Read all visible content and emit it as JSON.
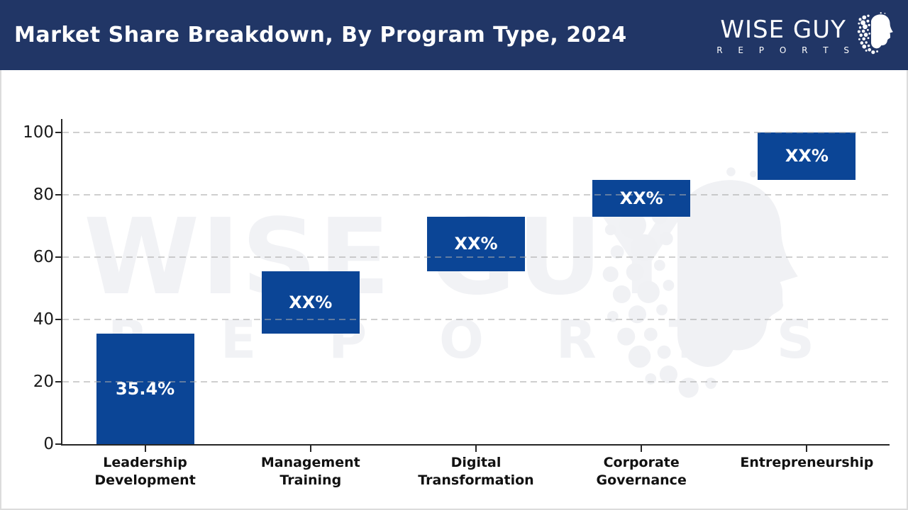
{
  "header": {
    "title": "Market Share Breakdown, By Program Type, 2024",
    "logo": {
      "name_top": "WISE GUY",
      "name_bottom": "R E P O R T S"
    },
    "colors": {
      "background": "#213666",
      "text": "#ffffff"
    }
  },
  "watermark": {
    "line1": "WISE GUY",
    "line2": "R E P O R T S"
  },
  "chart_data": {
    "type": "bar",
    "variant": "waterfall",
    "title": "Market Share Breakdown, By Program Type, 2024",
    "categories": [
      "Leadership Development",
      "Management Training",
      "Digital Transformation",
      "Corporate Governance",
      "Entrepreneurship"
    ],
    "category_label_lines": [
      [
        "Leadership",
        "Development"
      ],
      [
        "Management",
        "Training"
      ],
      [
        "Digital",
        "Transformation"
      ],
      [
        "Corporate",
        "Governance"
      ],
      [
        "Entrepreneurship"
      ]
    ],
    "segments": [
      {
        "category": "Leadership Development",
        "from": 0,
        "to": 35.4,
        "height": 35.4,
        "label": "35.4%"
      },
      {
        "category": "Management Training",
        "from": 35.4,
        "to": 55.5,
        "height": 20.1,
        "label": "XX%"
      },
      {
        "category": "Digital Transformation",
        "from": 55.5,
        "to": 73.0,
        "height": 17.5,
        "label": "XX%"
      },
      {
        "category": "Corporate Governance",
        "from": 73.0,
        "to": 84.8,
        "height": 11.8,
        "label": "XX%"
      },
      {
        "category": "Entrepreneurship",
        "from": 84.8,
        "to": 100.0,
        "height": 15.2,
        "label": "XX%"
      }
    ],
    "xlabel": "",
    "ylabel": "",
    "ylim": [
      0,
      104
    ],
    "yticks": [
      0,
      20,
      40,
      60,
      80,
      100
    ],
    "grid": {
      "horizontal": true,
      "style": "dashed",
      "color": "#d9d9d9"
    },
    "legend": null,
    "bar_color": "#0b4596",
    "bar_label_color": "#ffffff",
    "axis_color": "#262626",
    "tick_label_color": "#1a1a1a",
    "watermark_color": "#f1f2f5"
  }
}
